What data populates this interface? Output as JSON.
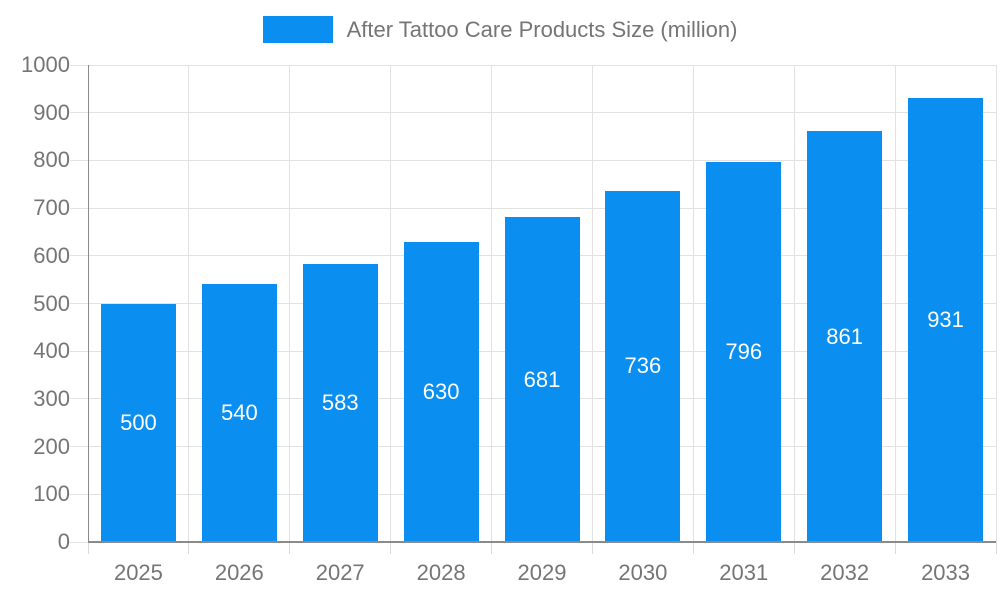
{
  "chart_data": {
    "type": "bar",
    "title": "",
    "legend_label": "After Tattoo Care Products Size (million)",
    "legend_position": "top-center",
    "categories": [
      "2025",
      "2026",
      "2027",
      "2028",
      "2029",
      "2030",
      "2031",
      "2032",
      "2033"
    ],
    "series": [
      {
        "name": "After Tattoo Care Products Size (million)",
        "values": [
          500,
          540,
          583,
          630,
          681,
          736,
          796,
          861,
          931
        ]
      }
    ],
    "bar_value_labels": [
      "500",
      "540",
      "583",
      "630",
      "681",
      "736",
      "796",
      "861",
      "931"
    ],
    "xlabel": "",
    "ylabel": "",
    "ylim": [
      0,
      1000
    ],
    "yticks": [
      0,
      100,
      200,
      300,
      400,
      500,
      600,
      700,
      800,
      900,
      1000
    ],
    "grid": true,
    "colors": {
      "bar": "#0a8ef0",
      "bar_label": "#ffffff",
      "axis_text": "#757575",
      "grid_line": "#e2e2e2",
      "tick_line": "#d9d9d9",
      "axis_line": "#8a8a8a",
      "background": "#ffffff"
    }
  }
}
